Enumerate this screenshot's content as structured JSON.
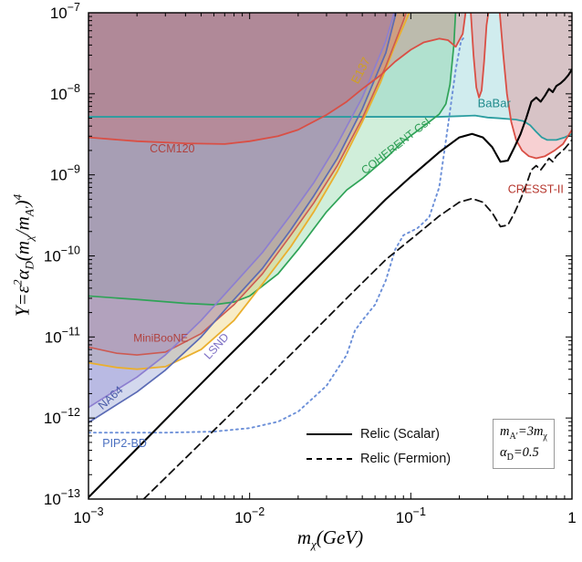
{
  "axes": {
    "x_label_html": "m<sub>χ</sub>(GeV)",
    "y_label_html": "Y=ε<sup>2</sup>α<sub>D</sub>(m<sub>χ</sub>/m<sub>A′</sub>)<sup>4</sup>"
  },
  "param_box": {
    "line1_html": "m<sub>A′</sub>=3m<sub>χ</sub>",
    "line2_html": "α<sub>D</sub>=0.5"
  },
  "chart_data": {
    "type": "line",
    "title": "",
    "xscale": "log",
    "yscale": "log",
    "xlim": [
      0.001,
      1
    ],
    "ylim": [
      1e-13,
      1e-07
    ],
    "grid": false,
    "legend_position": "inside bottom-right",
    "x_tick_exponents": [
      -3,
      -2,
      -1,
      0
    ],
    "y_tick_exponents": [
      -13,
      -12,
      -11,
      -10,
      -9,
      -8,
      -7
    ],
    "legend": {
      "items": [
        {
          "style": "solid",
          "label": "Relic (Scalar)"
        },
        {
          "style": "dashed",
          "label": "Relic (Fermion)"
        }
      ]
    },
    "series": [
      {
        "name": "BaBar",
        "color": "#2a9da0",
        "width": 1.8,
        "fill": "rgba(120,200,205,0.35)",
        "points": [
          [
            0.001,
            5.2e-09
          ],
          [
            0.05,
            5.2e-09
          ],
          [
            0.1,
            5.2e-09
          ],
          [
            0.15,
            5.2e-09
          ],
          [
            0.2,
            5.3e-09
          ],
          [
            0.25,
            5.4e-09
          ],
          [
            0.3,
            5.1e-09
          ],
          [
            0.35,
            5e-09
          ],
          [
            0.4,
            4.9e-09
          ],
          [
            0.45,
            4.8e-09
          ],
          [
            0.5,
            4.6e-09
          ],
          [
            0.55,
            4.1e-09
          ],
          [
            0.6,
            3.4e-09
          ],
          [
            0.65,
            2.9e-09
          ],
          [
            0.7,
            2.7e-09
          ],
          [
            0.8,
            2.7e-09
          ],
          [
            0.9,
            2.9e-09
          ],
          [
            1.0,
            3.2e-09
          ]
        ]
      },
      {
        "name": "COHERENT CsI",
        "color": "#2fa357",
        "width": 1.7,
        "fill": "rgba(120,205,150,0.35)",
        "points": [
          [
            0.001,
            3.2e-11
          ],
          [
            0.002,
            2.9e-11
          ],
          [
            0.004,
            2.6e-11
          ],
          [
            0.006,
            2.5e-11
          ],
          [
            0.008,
            2.7e-11
          ],
          [
            0.01,
            3.2e-11
          ],
          [
            0.015,
            6e-11
          ],
          [
            0.02,
            1.2e-10
          ],
          [
            0.03,
            3.5e-10
          ],
          [
            0.04,
            6.5e-10
          ],
          [
            0.05,
            9e-10
          ],
          [
            0.07,
            1.6e-09
          ],
          [
            0.09,
            2.6e-09
          ],
          [
            0.11,
            3.5e-09
          ],
          [
            0.13,
            4.5e-09
          ],
          [
            0.15,
            5.6e-09
          ],
          [
            0.165,
            7.5e-09
          ],
          [
            0.175,
            1.3e-08
          ],
          [
            0.185,
            4e-08
          ],
          [
            0.19,
            1.1e-07
          ]
        ]
      },
      {
        "name": "E137",
        "color": "#eaaf2e",
        "width": 1.8,
        "fill": "rgba(228,192,70,0.30)",
        "points": [
          [
            0.001,
            4.8e-12
          ],
          [
            0.0015,
            4.2e-12
          ],
          [
            0.002,
            4e-12
          ],
          [
            0.003,
            4.3e-12
          ],
          [
            0.005,
            7e-12
          ],
          [
            0.008,
            1.6e-11
          ],
          [
            0.012,
            4.5e-11
          ],
          [
            0.018,
            1.3e-10
          ],
          [
            0.025,
            3.5e-10
          ],
          [
            0.035,
            1.1e-09
          ],
          [
            0.05,
            4.5e-09
          ],
          [
            0.065,
            1.4e-08
          ],
          [
            0.08,
            4e-08
          ],
          [
            0.1,
            1.1e-07
          ]
        ]
      },
      {
        "name": "MiniBooNE",
        "color": "#cc5a52",
        "width": 1.6,
        "fill": "rgba(225,120,110,0.30)",
        "points": [
          [
            0.001,
            7.5e-12
          ],
          [
            0.0015,
            6.3e-12
          ],
          [
            0.002,
            6e-12
          ],
          [
            0.003,
            6.5e-12
          ],
          [
            0.005,
            1.1e-11
          ],
          [
            0.008,
            2.5e-11
          ],
          [
            0.012,
            6e-11
          ],
          [
            0.018,
            1.8e-10
          ],
          [
            0.025,
            4.5e-10
          ],
          [
            0.035,
            1.3e-09
          ],
          [
            0.05,
            5e-09
          ],
          [
            0.07,
            2.2e-08
          ],
          [
            0.09,
            8e-08
          ],
          [
            0.095,
            1.1e-07
          ]
        ]
      },
      {
        "name": "LSND",
        "color": "#8d7fd0",
        "width": 1.7,
        "fill": "rgba(150,135,215,0.35)",
        "points": [
          [
            0.001,
            1.35e-12
          ],
          [
            0.002,
            3.2e-12
          ],
          [
            0.003,
            6e-12
          ],
          [
            0.005,
            1.6e-11
          ],
          [
            0.008,
            4.5e-11
          ],
          [
            0.012,
            1.1e-10
          ],
          [
            0.018,
            3.2e-10
          ],
          [
            0.025,
            8e-10
          ],
          [
            0.035,
            2.4e-09
          ],
          [
            0.05,
            9e-09
          ],
          [
            0.07,
            4.5e-08
          ],
          [
            0.08,
            1.1e-07
          ]
        ]
      },
      {
        "name": "NA64",
        "color": "#5b6bb5",
        "width": 1.7,
        "fill": "rgba(110,125,195,0.30)",
        "points": [
          [
            0.001,
            8.8e-13
          ],
          [
            0.002,
            2.1e-12
          ],
          [
            0.003,
            3.9e-12
          ],
          [
            0.005,
            1e-11
          ],
          [
            0.008,
            2.9e-11
          ],
          [
            0.012,
            7e-11
          ],
          [
            0.018,
            2.1e-10
          ],
          [
            0.025,
            5.5e-10
          ],
          [
            0.035,
            1.6e-09
          ],
          [
            0.05,
            6.5e-09
          ],
          [
            0.07,
            3.2e-08
          ],
          [
            0.082,
            1.1e-07
          ]
        ]
      },
      {
        "name": "CCM120",
        "color": "#d94f45",
        "width": 1.8,
        "fill": "rgba(220,90,85,0.28)",
        "points": [
          [
            0.001,
            2.9e-09
          ],
          [
            0.002,
            2.6e-09
          ],
          [
            0.004,
            2.45e-09
          ],
          [
            0.007,
            2.4e-09
          ],
          [
            0.01,
            2.6e-09
          ],
          [
            0.015,
            3e-09
          ],
          [
            0.02,
            3.6e-09
          ],
          [
            0.03,
            5.5e-09
          ],
          [
            0.04,
            8e-09
          ],
          [
            0.05,
            1.15e-08
          ],
          [
            0.065,
            1.7e-08
          ],
          [
            0.08,
            2.5e-08
          ],
          [
            0.1,
            3.5e-08
          ],
          [
            0.12,
            4.3e-08
          ],
          [
            0.15,
            4.8e-08
          ],
          [
            0.17,
            4.6e-08
          ],
          [
            0.19,
            3.8e-08
          ],
          [
            0.21,
            5.5e-08
          ],
          [
            0.22,
            1.1e-07
          ]
        ]
      },
      {
        "name": "CRESST-II",
        "color": "#d94f45",
        "width": 1.8,
        "fill": "rgba(230,110,115,0.32)",
        "points": [
          [
            0.235,
            1.1e-07
          ],
          [
            0.245,
            3e-08
          ],
          [
            0.255,
            1.2e-08
          ],
          [
            0.265,
            9e-09
          ],
          [
            0.275,
            1.1e-08
          ],
          [
            0.285,
            2.5e-08
          ],
          [
            0.295,
            7e-08
          ],
          [
            0.305,
            1.1e-07
          ],
          [
            0.355,
            1.1e-07
          ],
          [
            0.375,
            3e-08
          ],
          [
            0.395,
            1e-08
          ],
          [
            0.42,
            4.5e-09
          ],
          [
            0.45,
            2.7e-09
          ],
          [
            0.49,
            2e-09
          ],
          [
            0.54,
            1.7e-09
          ],
          [
            0.6,
            1.6e-09
          ],
          [
            0.68,
            1.7e-09
          ],
          [
            0.78,
            2e-09
          ],
          [
            0.88,
            2.4e-09
          ],
          [
            1.0,
            3.6e-09
          ]
        ]
      },
      {
        "name": "PIP2-BD",
        "color": "#6b8fd8",
        "width": 1.9,
        "dash": "2 4",
        "fill": null,
        "points": [
          [
            0.001,
            6.6e-13
          ],
          [
            0.003,
            6.6e-13
          ],
          [
            0.006,
            6.8e-13
          ],
          [
            0.01,
            7.5e-13
          ],
          [
            0.015,
            9e-13
          ],
          [
            0.02,
            1.2e-12
          ],
          [
            0.03,
            2.5e-12
          ],
          [
            0.04,
            6e-12
          ],
          [
            0.045,
            1.2e-11
          ],
          [
            0.05,
            1.6e-11
          ],
          [
            0.06,
            2.5e-11
          ],
          [
            0.07,
            5e-11
          ],
          [
            0.08,
            1.2e-10
          ],
          [
            0.09,
            1.8e-10
          ],
          [
            0.11,
            2.2e-10
          ],
          [
            0.13,
            3e-10
          ],
          [
            0.15,
            7e-10
          ],
          [
            0.17,
            4e-09
          ],
          [
            0.19,
            2e-08
          ],
          [
            0.205,
            4.5e-08
          ],
          [
            0.215,
            5e-08
          ]
        ]
      },
      {
        "name": "Relic (Fermion)",
        "color": "#111111",
        "width": 1.8,
        "dash": "8 5",
        "fill": null,
        "points": [
          [
            0.0022,
            1e-13
          ],
          [
            0.004,
            3.2e-13
          ],
          [
            0.007,
            9.5e-13
          ],
          [
            0.01,
            1.9e-12
          ],
          [
            0.02,
            7.5e-12
          ],
          [
            0.04,
            3e-11
          ],
          [
            0.07,
            9e-11
          ],
          [
            0.1,
            1.6e-10
          ],
          [
            0.15,
            3.1e-10
          ],
          [
            0.2,
            4.6e-10
          ],
          [
            0.24,
            5.1e-10
          ],
          [
            0.28,
            4.6e-10
          ],
          [
            0.32,
            3.4e-10
          ],
          [
            0.36,
            2.3e-10
          ],
          [
            0.4,
            2.4e-10
          ],
          [
            0.44,
            3.4e-10
          ],
          [
            0.48,
            5e-10
          ],
          [
            0.52,
            7.5e-10
          ],
          [
            0.56,
            1.15e-09
          ],
          [
            0.6,
            1.3e-09
          ],
          [
            0.64,
            1.15e-09
          ],
          [
            0.68,
            1.35e-09
          ],
          [
            0.72,
            1.6e-09
          ],
          [
            0.76,
            1.45e-09
          ],
          [
            0.8,
            1.7e-09
          ],
          [
            0.9,
            2.1e-09
          ],
          [
            1.0,
            2.7e-09
          ]
        ]
      },
      {
        "name": "Relic (Scalar)",
        "color": "#000000",
        "width": 2.1,
        "fill": null,
        "points": [
          [
            0.001,
            1.05e-13
          ],
          [
            0.002,
            4.2e-13
          ],
          [
            0.004,
            1.7e-12
          ],
          [
            0.007,
            5.2e-12
          ],
          [
            0.01,
            1.05e-11
          ],
          [
            0.02,
            4.2e-11
          ],
          [
            0.04,
            1.65e-10
          ],
          [
            0.07,
            5e-10
          ],
          [
            0.1,
            9.5e-10
          ],
          [
            0.15,
            1.9e-09
          ],
          [
            0.2,
            2.9e-09
          ],
          [
            0.24,
            3.2e-09
          ],
          [
            0.28,
            2.9e-09
          ],
          [
            0.32,
            2.2e-09
          ],
          [
            0.36,
            1.45e-09
          ],
          [
            0.4,
            1.5e-09
          ],
          [
            0.44,
            2.2e-09
          ],
          [
            0.48,
            3.2e-09
          ],
          [
            0.52,
            5e-09
          ],
          [
            0.56,
            8e-09
          ],
          [
            0.6,
            9e-09
          ],
          [
            0.64,
            8e-09
          ],
          [
            0.68,
            9.5e-09
          ],
          [
            0.72,
            1.15e-08
          ],
          [
            0.76,
            1.05e-08
          ],
          [
            0.8,
            1.25e-08
          ],
          [
            0.85,
            1.35e-08
          ],
          [
            0.9,
            1.5e-08
          ],
          [
            0.95,
            1.7e-08
          ],
          [
            1.0,
            2e-08
          ]
        ]
      }
    ],
    "annotations": [
      {
        "text": "CCM120",
        "x": 0.0024,
        "y": 1.9e-09,
        "color": "#b0413e",
        "rot": 0,
        "size": 12.5
      },
      {
        "text": "E137",
        "x": 0.047,
        "y": 1.3e-08,
        "color": "#cfa023",
        "rot": -63,
        "size": 13
      },
      {
        "text": "COHERENT CsI",
        "x": 0.052,
        "y": 1e-09,
        "color": "#2e9e55",
        "rot": -38,
        "size": 12.5
      },
      {
        "text": "BaBar",
        "x": 0.26,
        "y": 6.8e-09,
        "color": "#1f8a8c",
        "rot": 0,
        "size": 13
      },
      {
        "text": "CRESST-II",
        "x": 0.4,
        "y": 6e-10,
        "color": "#b5352c",
        "rot": 0,
        "size": 12.5
      },
      {
        "text": "MiniBooNE",
        "x": 0.0019,
        "y": 8.8e-12,
        "color": "#b0413e",
        "rot": 0,
        "size": 12
      },
      {
        "text": "LSND",
        "x": 0.0056,
        "y": 5.2e-12,
        "color": "#7d6fc4",
        "rot": -48,
        "size": 12.5
      },
      {
        "text": "NA64",
        "x": 0.00122,
        "y": 1.25e-12,
        "color": "#4a5ca8",
        "rot": -42,
        "size": 12.5
      },
      {
        "text": "PIP2-BD",
        "x": 0.00122,
        "y": 4.4e-13,
        "color": "#4a6fc0",
        "rot": 0,
        "size": 12.5
      }
    ]
  }
}
